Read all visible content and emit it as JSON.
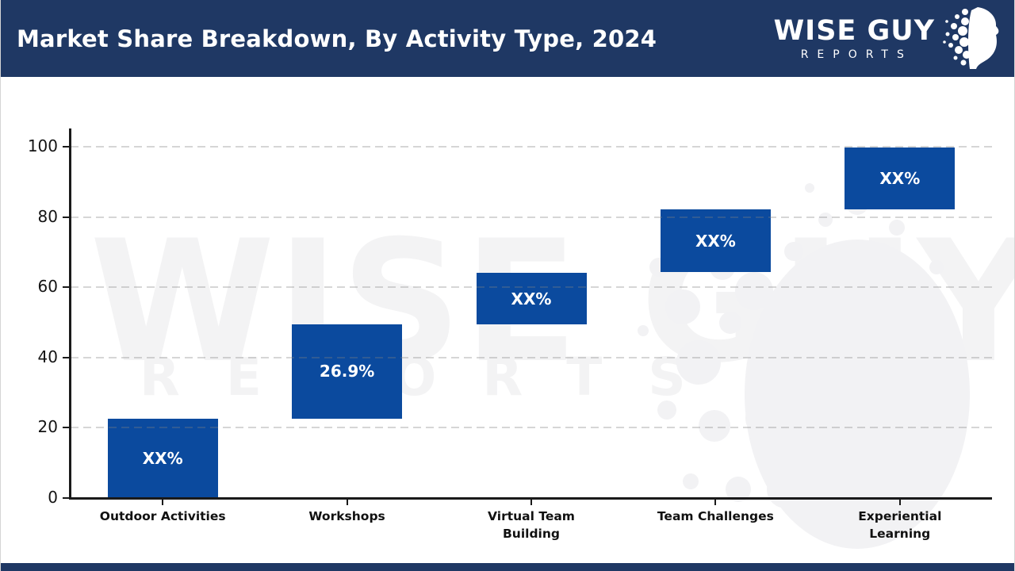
{
  "header": {
    "title": "Market Share Breakdown, By Activity Type, 2024",
    "bg_color": "#1f3864",
    "logo": {
      "line1": "WISE GUY",
      "line2": "REPORTS"
    }
  },
  "watermark": {
    "line1": "WISE GUY",
    "line2": "REPORTS"
  },
  "chart_data": {
    "type": "bar",
    "subtype": "waterfall",
    "title": "Market Share Breakdown, By Activity Type, 2024",
    "categories": [
      "Outdoor Activities",
      "Workshops",
      "Virtual Team\nBuilding",
      "Team Challenges",
      "Experiential\nLearning"
    ],
    "segments": [
      {
        "category": "Outdoor Activities",
        "start": 0,
        "end": 22.6,
        "value_label": "XX%"
      },
      {
        "category": "Workshops",
        "start": 22.6,
        "end": 49.5,
        "value_label": "26.9%"
      },
      {
        "category": "Virtual Team Building",
        "start": 49.4,
        "end": 64.1,
        "value_label": "XX%"
      },
      {
        "category": "Team Challenges",
        "start": 64.3,
        "end": 82.2,
        "value_label": "XX%"
      },
      {
        "category": "Experiential Learning",
        "start": 82.2,
        "end": 99.8,
        "value_label": "XX%"
      }
    ],
    "yticks": [
      0,
      20,
      40,
      60,
      80,
      100
    ],
    "ylim": [
      0,
      105
    ],
    "xlabel": "",
    "ylabel": "",
    "bar_color": "#0b4a9e",
    "grid": "dashed-horizontal",
    "legend": "none"
  }
}
